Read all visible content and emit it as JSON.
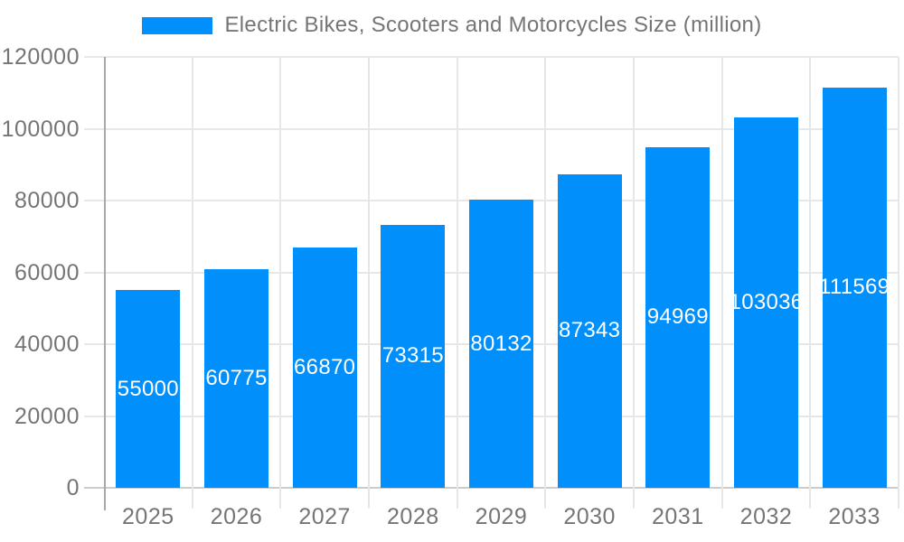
{
  "chart_data": {
    "type": "bar",
    "title": "Electric Bikes, Scooters and Motorcycles Size (million)",
    "categories": [
      "2025",
      "2026",
      "2027",
      "2028",
      "2029",
      "2030",
      "2031",
      "2032",
      "2033"
    ],
    "values": [
      55000,
      60775,
      66870,
      73315,
      80132,
      87343,
      94969,
      103036,
      111569
    ],
    "y_ticks": [
      0,
      20000,
      40000,
      60000,
      80000,
      100000,
      120000
    ],
    "ylim": [
      0,
      120000
    ],
    "xlabel": "",
    "ylabel": "",
    "grid": true,
    "legend_position": "top",
    "bar_color": "#008FFB",
    "bar_label_color": "#ffffff",
    "axis_text_color": "#757575",
    "grid_color": "#e7e7e7",
    "axis_line_color": "#a8a8a8"
  }
}
